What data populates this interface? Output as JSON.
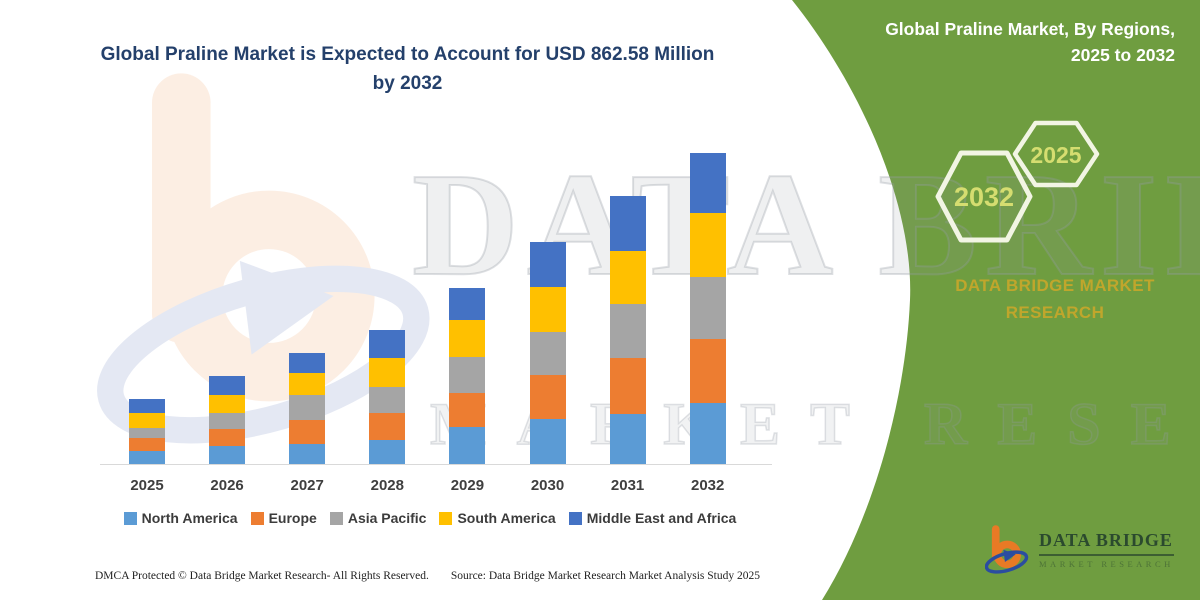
{
  "title": "Global Praline Market is Expected to Account for USD 862.58 Million by 2032",
  "panel": {
    "heading": "Global Praline Market, By Regions, 2025 to 2032",
    "hexagon_large": "2032",
    "hexagon_small": "2025",
    "caption": "DATA BRIDGE MARKET RESEARCH"
  },
  "logo": {
    "brand": "DATA BRIDGE",
    "subtitle": "MARKET RESEARCH"
  },
  "watermark": {
    "line1": "DATA BRIDGE",
    "line2": "MARKET RESEARCH"
  },
  "footer": {
    "dmca": "DMCA Protected © Data Bridge Market Research- All Rights Reserved.",
    "source": "Source: Data Bridge Market Research Market Analysis Study 2025"
  },
  "colors": {
    "panel_green": "#6f9d40",
    "title_blue": "#24406b",
    "hex_stroke": "#f2f5e4",
    "hex_text": "#d5dd70",
    "caption_gold": "#c0a62c",
    "logo_orange": "#e87a25",
    "logo_blue": "#2b4da0",
    "logo_green": "#2b4a2e"
  },
  "chart_data": {
    "type": "bar",
    "stacked": true,
    "unit": "USD Million",
    "title": "Global Praline Market is Expected to Account for USD 862.58 Million by 2032",
    "categories": [
      "2025",
      "2026",
      "2027",
      "2028",
      "2029",
      "2030",
      "2031",
      "2032"
    ],
    "series": [
      {
        "name": "North America",
        "color": "#5b9bd5",
        "values": [
          38,
          52,
          59,
          69,
          106,
          128,
          142,
          171
        ]
      },
      {
        "name": "Europe",
        "color": "#ed7d31",
        "values": [
          36,
          49,
          65,
          75,
          92,
          120,
          155,
          176
        ]
      },
      {
        "name": "Asia Pacific",
        "color": "#a5a5a5",
        "values": [
          28,
          44,
          70,
          72,
          102,
          120,
          147,
          172
        ]
      },
      {
        "name": "South America",
        "color": "#ffc000",
        "values": [
          42,
          49,
          60,
          80,
          100,
          124,
          148,
          176.58
        ]
      },
      {
        "name": "Middle East and Africa",
        "color": "#4472c4",
        "values": [
          40,
          52,
          56,
          77,
          89,
          124,
          151,
          167
        ]
      }
    ],
    "totals_by_year": [
      184,
      246,
      310,
      373,
      489,
      616,
      743,
      862.58
    ],
    "ylim": [
      0,
      880
    ],
    "grid": false,
    "y_axis_visible": false,
    "legend_position": "bottom"
  }
}
